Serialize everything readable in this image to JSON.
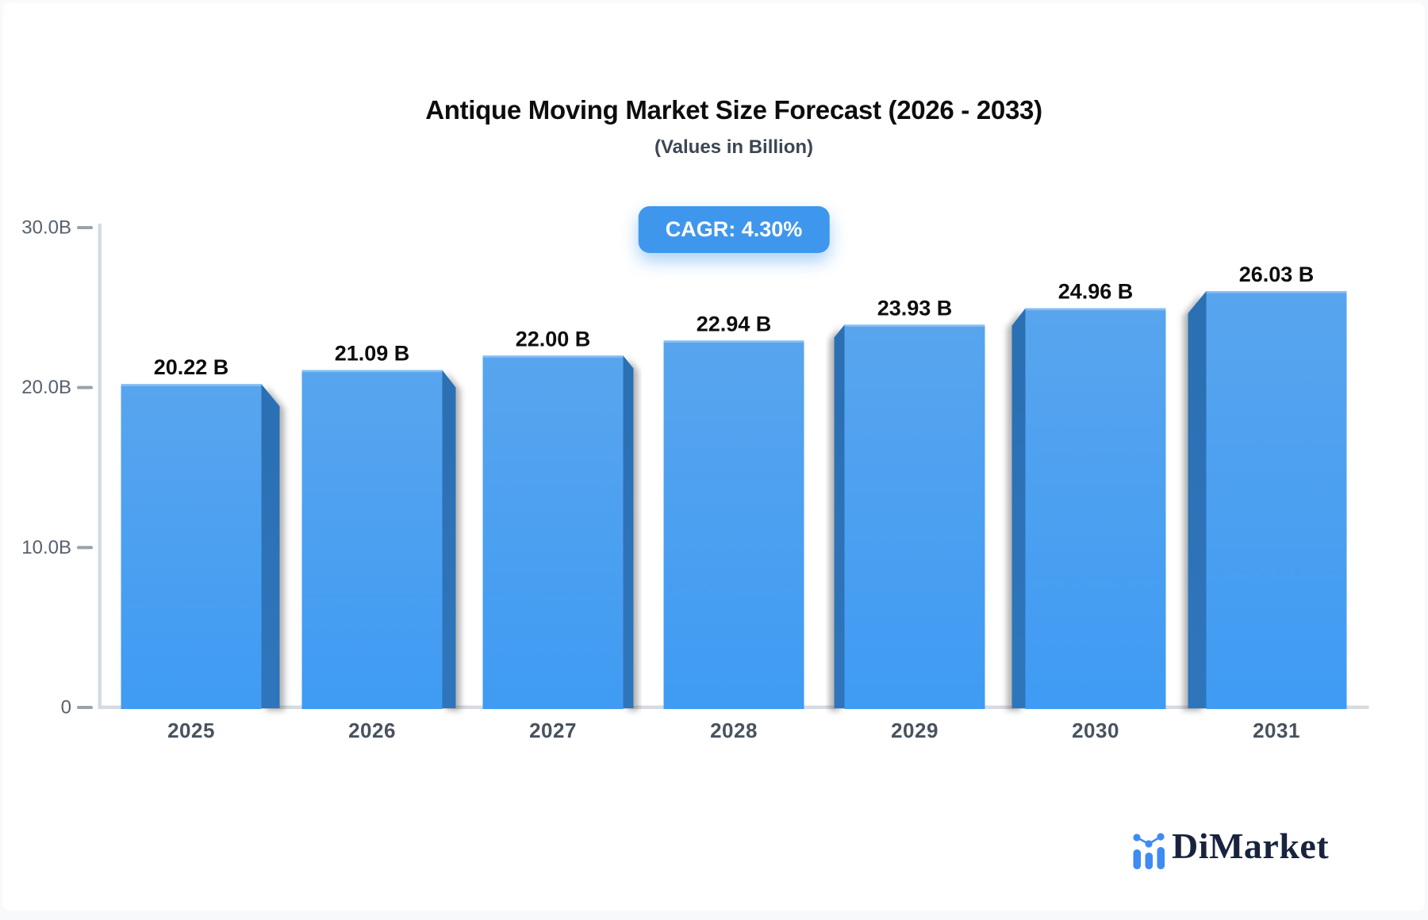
{
  "page": {
    "background": "#f7f9fb",
    "card_background": "#ffffff"
  },
  "header": {
    "title": "Antique Moving Market Size Forecast (2026 - 2033)",
    "subtitle": "(Values in Billion)",
    "cagr_badge": "CAGR: 4.30%",
    "badge_color": "#3f97ed"
  },
  "chart_data": {
    "type": "bar",
    "title": "Antique Moving Market Size Forecast (2026 - 2033)",
    "subtitle": "(Values in Billion)",
    "annotation": "CAGR: 4.30%",
    "categories": [
      "2025",
      "2026",
      "2027",
      "2028",
      "2029",
      "2030",
      "2031"
    ],
    "values": [
      20.22,
      21.09,
      22.0,
      22.94,
      23.93,
      24.96,
      26.03
    ],
    "value_labels": [
      "20.22 B",
      "21.09 B",
      "22.00 B",
      "22.94 B",
      "23.93 B",
      "24.96 B",
      "26.03 B"
    ],
    "unit": "Billion",
    "ylim": [
      0,
      30
    ],
    "yticks": [
      {
        "value": 0,
        "label": "0"
      },
      {
        "value": 10,
        "label": "10.0B"
      },
      {
        "value": 20,
        "label": "20.0B"
      },
      {
        "value": 30,
        "label": "30.0B"
      }
    ],
    "grid": false,
    "legend": "none",
    "bar_style": "3d-center-perspective",
    "colors": {
      "bar_face_top": "#58a5ee",
      "bar_face_bottom": "#3f9bf3",
      "bar_side": "#2e75bc",
      "bar_top_highlight": "#86bef5",
      "axis": "#d7dbe1",
      "tick_dash": "#9aa1ab",
      "ytick_label": "#58616f",
      "xtick_label": "#49525f",
      "value_label": "#0d0d0d"
    }
  },
  "logo": {
    "text": "DiMarket",
    "color": "#18233f",
    "icon": "mini-bar-line-chart-icon",
    "icon_color": "#3e8bf2"
  }
}
